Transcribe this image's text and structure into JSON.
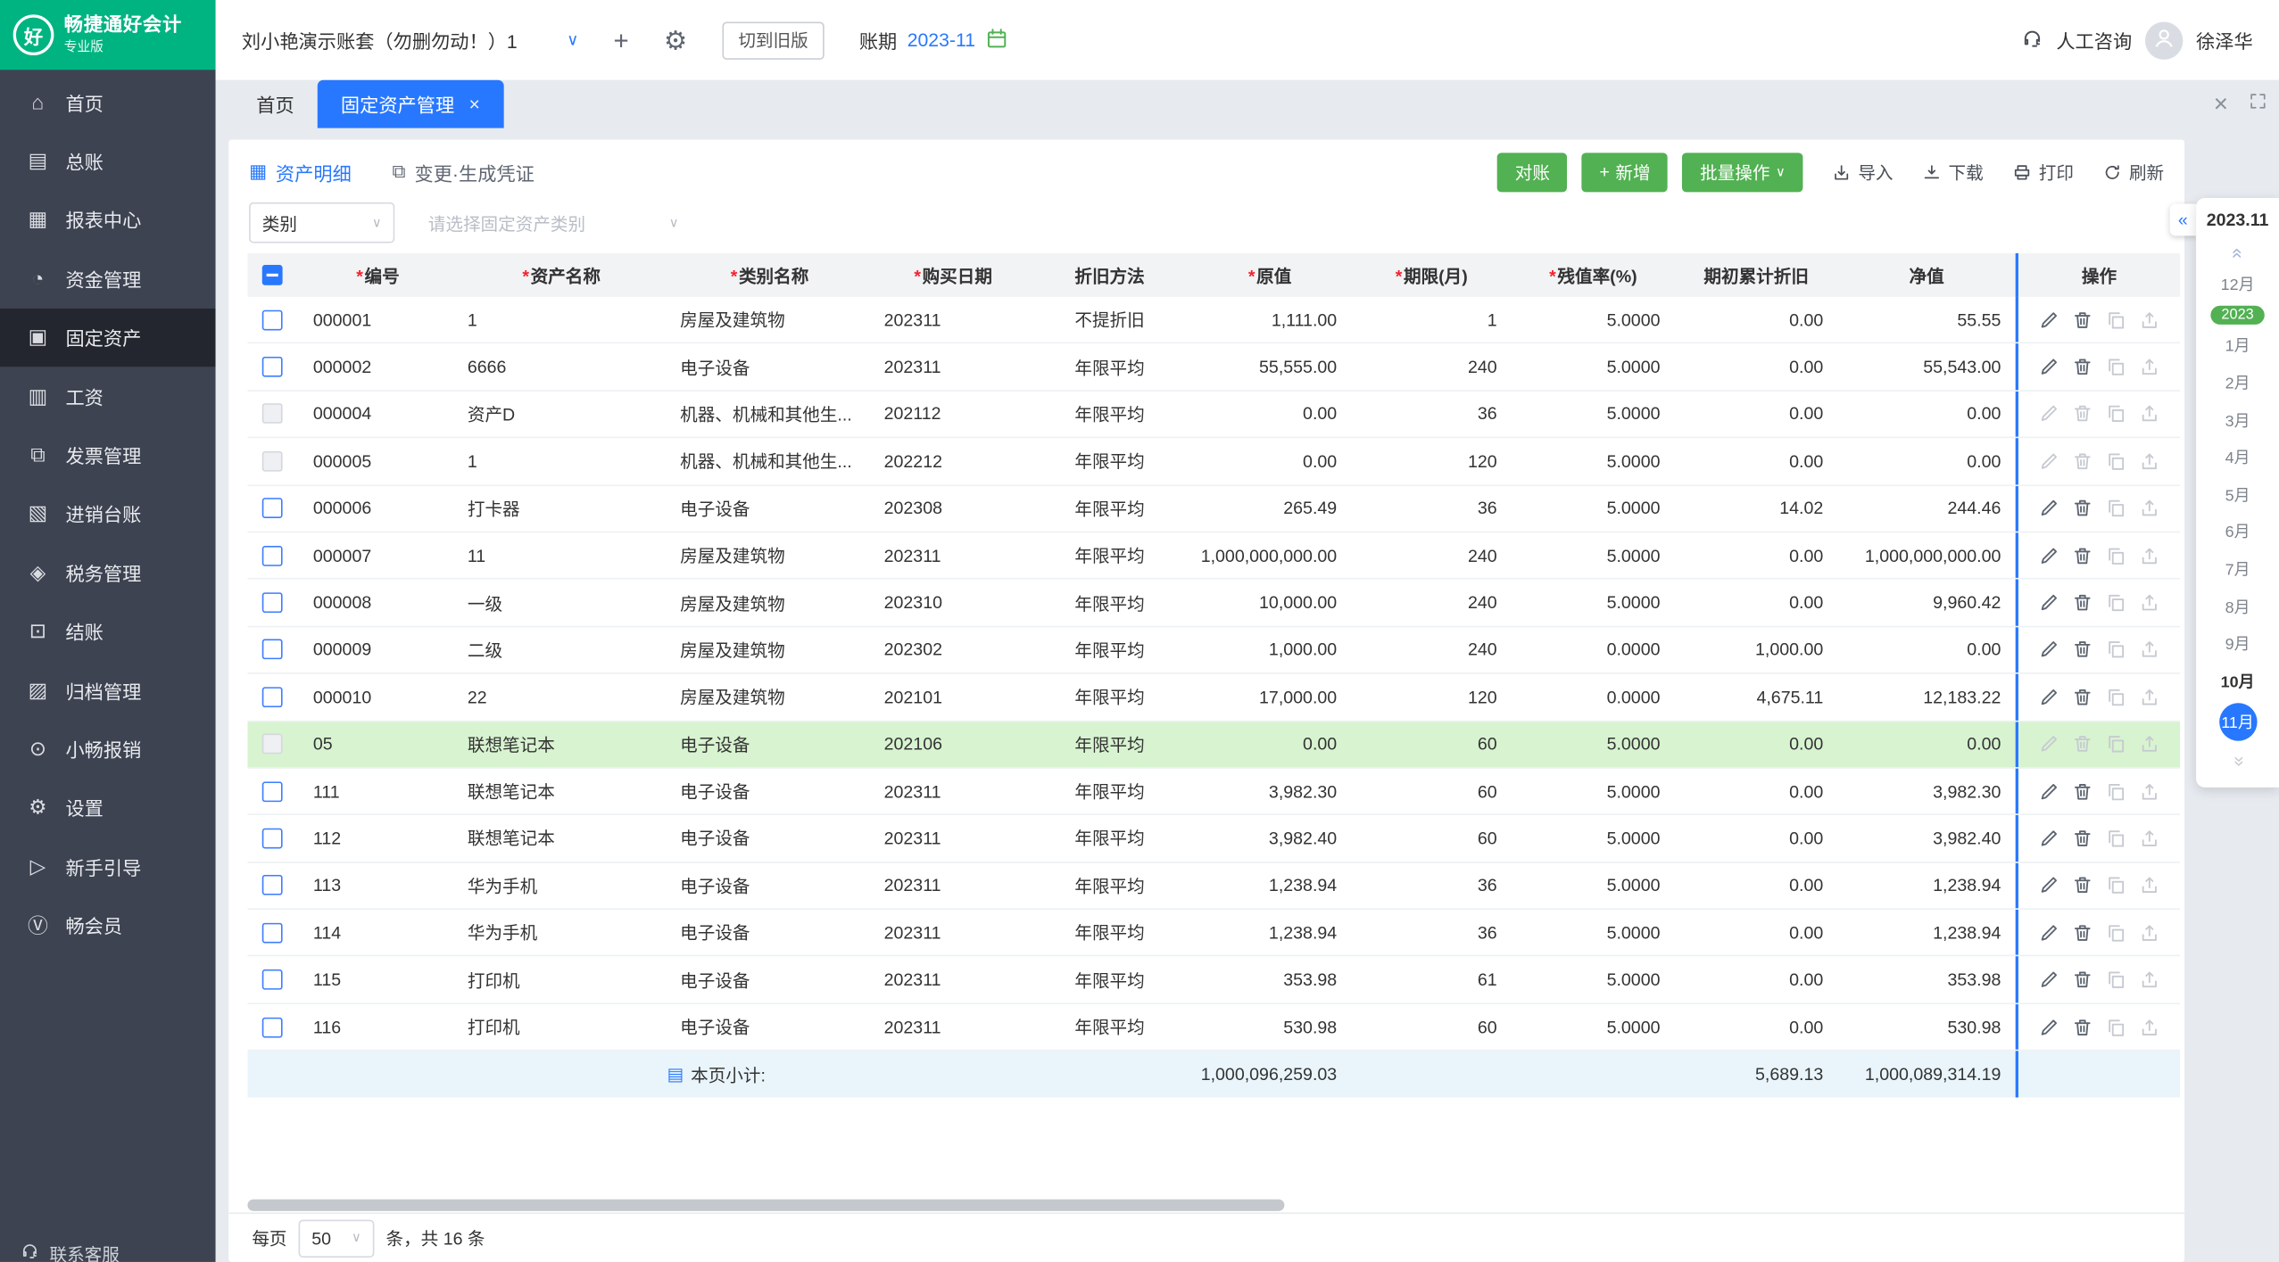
{
  "app": {
    "logo_title": "畅捷通好会计",
    "logo_subtitle": "专业版"
  },
  "sidebar": {
    "items": [
      {
        "label": "首页",
        "icon": "home-icon"
      },
      {
        "label": "总账",
        "icon": "ledger-icon"
      },
      {
        "label": "报表中心",
        "icon": "report-icon"
      },
      {
        "label": "资金管理",
        "icon": "fund-icon"
      },
      {
        "label": "固定资产",
        "icon": "asset-icon",
        "active": true
      },
      {
        "label": "工资",
        "icon": "payroll-icon"
      },
      {
        "label": "发票管理",
        "icon": "invoice-icon"
      },
      {
        "label": "进销台账",
        "icon": "purchase-sales-icon"
      },
      {
        "label": "税务管理",
        "icon": "tax-icon"
      },
      {
        "label": "结账",
        "icon": "closing-icon"
      },
      {
        "label": "归档管理",
        "icon": "archive-icon"
      },
      {
        "label": "小畅报销",
        "icon": "expense-icon"
      },
      {
        "label": "设置",
        "icon": "settings-icon"
      },
      {
        "label": "新手引导",
        "icon": "guide-icon"
      },
      {
        "label": "畅会员",
        "icon": "member-icon"
      }
    ],
    "footer_label": "联系客服"
  },
  "topbar": {
    "account_set": "刘小艳演示账套（勿删勿动！）1",
    "switch_old": "切到旧版",
    "period_label": "账期",
    "period_value": "2023-11",
    "support": "人工咨询",
    "user": "徐泽华"
  },
  "tabs": {
    "items": [
      {
        "label": "首页"
      },
      {
        "label": "固定资产管理",
        "active": true,
        "closable": true
      }
    ]
  },
  "toolbar": {
    "view_tabs": [
      {
        "label": "资产明细",
        "icon": "grid-icon",
        "active": true
      },
      {
        "label": "变更·生成凭证",
        "icon": "voucher-icon",
        "active": false
      }
    ],
    "buttons": [
      {
        "label": "对账",
        "style": "green"
      },
      {
        "label": "新增",
        "style": "green",
        "icon_before": "plus-icon"
      },
      {
        "label": "批量操作",
        "style": "green",
        "icon_after": "chevron-down-icon"
      },
      {
        "label": "导入",
        "style": "text",
        "icon_before": "import-icon"
      },
      {
        "label": "下载",
        "style": "text",
        "icon_before": "download-icon"
      },
      {
        "label": "打印",
        "style": "text",
        "icon_before": "print-icon"
      },
      {
        "label": "刷新",
        "style": "text",
        "icon_before": "refresh-icon"
      }
    ]
  },
  "filters": {
    "category_label": "类别",
    "category_placeholder": "请选择固定资产类别"
  },
  "table": {
    "columns": [
      {
        "label": "编号",
        "required": true
      },
      {
        "label": "资产名称",
        "required": true
      },
      {
        "label": "类别名称",
        "required": true
      },
      {
        "label": "购买日期",
        "required": true
      },
      {
        "label": "折旧方法",
        "required": false
      },
      {
        "label": "原值",
        "required": true
      },
      {
        "label": "期限(月)",
        "required": true
      },
      {
        "label": "残值率(%)",
        "required": true
      },
      {
        "label": "期初累计折旧",
        "required": false
      },
      {
        "label": "净值",
        "required": false
      },
      {
        "label": "操作",
        "required": false
      }
    ],
    "op_icons": [
      "edit-icon",
      "delete-icon",
      "copy-icon",
      "export-icon"
    ],
    "rows": [
      {
        "code": "000001",
        "name": "1",
        "category": "房屋及建筑物",
        "purchase_date": "202311",
        "method": "不提折旧",
        "original_value": "1,111.00",
        "term_months": "1",
        "residual_rate": "5.0000",
        "initial_depreciation": "0.00",
        "net_value": "55.55"
      },
      {
        "code": "000002",
        "name": "6666",
        "category": "电子设备",
        "purchase_date": "202311",
        "method": "年限平均",
        "original_value": "55,555.00",
        "term_months": "240",
        "residual_rate": "5.0000",
        "initial_depreciation": "0.00",
        "net_value": "55,543.00"
      },
      {
        "code": "000004",
        "name": "资产D",
        "category": "机器、机械和其他生...",
        "purchase_date": "202112",
        "method": "年限平均",
        "original_value": "0.00",
        "term_months": "36",
        "residual_rate": "5.0000",
        "initial_depreciation": "0.00",
        "net_value": "0.00",
        "disabled": true
      },
      {
        "code": "000005",
        "name": "1",
        "category": "机器、机械和其他生...",
        "purchase_date": "202212",
        "method": "年限平均",
        "original_value": "0.00",
        "term_months": "120",
        "residual_rate": "5.0000",
        "initial_depreciation": "0.00",
        "net_value": "0.00",
        "disabled": true
      },
      {
        "code": "000006",
        "name": "打卡器",
        "category": "电子设备",
        "purchase_date": "202308",
        "method": "年限平均",
        "original_value": "265.49",
        "term_months": "36",
        "residual_rate": "5.0000",
        "initial_depreciation": "14.02",
        "net_value": "244.46"
      },
      {
        "code": "000007",
        "name": "11",
        "category": "房屋及建筑物",
        "purchase_date": "202311",
        "method": "年限平均",
        "original_value": "1,000,000,000.00",
        "term_months": "240",
        "residual_rate": "5.0000",
        "initial_depreciation": "0.00",
        "net_value": "1,000,000,000.00"
      },
      {
        "code": "000008",
        "name": "一级",
        "category": "房屋及建筑物",
        "purchase_date": "202310",
        "method": "年限平均",
        "original_value": "10,000.00",
        "term_months": "240",
        "residual_rate": "5.0000",
        "initial_depreciation": "0.00",
        "net_value": "9,960.42"
      },
      {
        "code": "000009",
        "name": "二级",
        "category": "房屋及建筑物",
        "purchase_date": "202302",
        "method": "年限平均",
        "original_value": "1,000.00",
        "term_months": "240",
        "residual_rate": "0.0000",
        "initial_depreciation": "1,000.00",
        "net_value": "0.00"
      },
      {
        "code": "000010",
        "name": "22",
        "category": "房屋及建筑物",
        "purchase_date": "202101",
        "method": "年限平均",
        "original_value": "17,000.00",
        "term_months": "120",
        "residual_rate": "0.0000",
        "initial_depreciation": "4,675.11",
        "net_value": "12,183.22"
      },
      {
        "code": "05",
        "name": "联想笔记本",
        "category": "电子设备",
        "purchase_date": "202106",
        "method": "年限平均",
        "original_value": "0.00",
        "term_months": "60",
        "residual_rate": "5.0000",
        "initial_depreciation": "0.00",
        "net_value": "0.00",
        "highlighted": true,
        "disabled": true
      },
      {
        "code": "111",
        "name": "联想笔记本",
        "category": "电子设备",
        "purchase_date": "202311",
        "method": "年限平均",
        "original_value": "3,982.30",
        "term_months": "60",
        "residual_rate": "5.0000",
        "initial_depreciation": "0.00",
        "net_value": "3,982.30"
      },
      {
        "code": "112",
        "name": "联想笔记本",
        "category": "电子设备",
        "purchase_date": "202311",
        "method": "年限平均",
        "original_value": "3,982.40",
        "term_months": "60",
        "residual_rate": "5.0000",
        "initial_depreciation": "0.00",
        "net_value": "3,982.40"
      },
      {
        "code": "113",
        "name": "华为手机",
        "category": "电子设备",
        "purchase_date": "202311",
        "method": "年限平均",
        "original_value": "1,238.94",
        "term_months": "36",
        "residual_rate": "5.0000",
        "initial_depreciation": "0.00",
        "net_value": "1,238.94"
      },
      {
        "code": "114",
        "name": "华为手机",
        "category": "电子设备",
        "purchase_date": "202311",
        "method": "年限平均",
        "original_value": "1,238.94",
        "term_months": "36",
        "residual_rate": "5.0000",
        "initial_depreciation": "0.00",
        "net_value": "1,238.94"
      },
      {
        "code": "115",
        "name": "打印机",
        "category": "电子设备",
        "purchase_date": "202311",
        "method": "年限平均",
        "original_value": "353.98",
        "term_months": "61",
        "residual_rate": "5.0000",
        "initial_depreciation": "0.00",
        "net_value": "353.98"
      },
      {
        "code": "116",
        "name": "打印机",
        "category": "电子设备",
        "purchase_date": "202311",
        "method": "年限平均",
        "original_value": "530.98",
        "term_months": "60",
        "residual_rate": "5.0000",
        "initial_depreciation": "0.00",
        "net_value": "530.98"
      }
    ],
    "summary": {
      "label": "本页小计:",
      "original_value": "1,000,096,259.03",
      "initial_depreciation": "5,689.13",
      "net_value": "1,000,089,314.19"
    }
  },
  "pagination": {
    "per_page_label": "每页",
    "per_page": "50",
    "suffix": "条，共 16 条"
  },
  "calendar": {
    "current_period": "2023.11",
    "items": [
      {
        "label": "12月"
      },
      {
        "label": "2023",
        "type": "year"
      },
      {
        "label": "1月"
      },
      {
        "label": "2月"
      },
      {
        "label": "3月"
      },
      {
        "label": "4月"
      },
      {
        "label": "5月"
      },
      {
        "label": "6月"
      },
      {
        "label": "7月"
      },
      {
        "label": "8月"
      },
      {
        "label": "9月"
      },
      {
        "label": "10月",
        "emphasis": true
      },
      {
        "label": "11月",
        "selected": true
      }
    ]
  },
  "colors": {
    "accent_blue": "#2878ff",
    "brand_green": "#00b482",
    "button_green": "#52b153",
    "highlight_row": "#d8f3d0",
    "summary_row": "#e9f5fb",
    "required_red": "#f5222d"
  }
}
